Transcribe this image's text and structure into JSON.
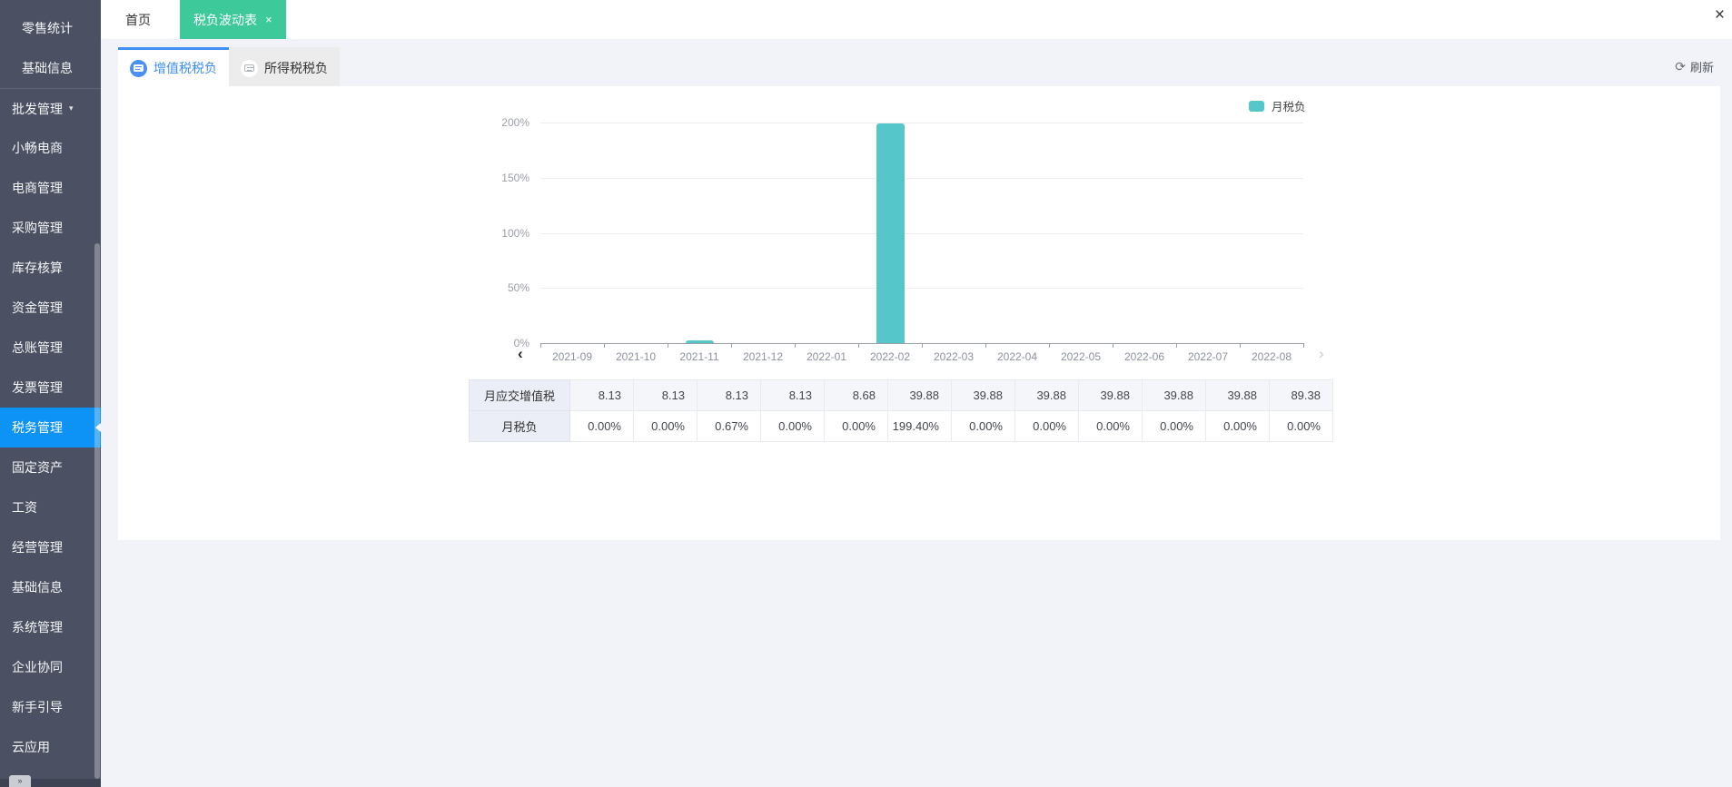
{
  "window": {
    "close_label": "×"
  },
  "icons": {
    "refresh": "⟳",
    "tab_close": "×",
    "caret_down": "▾",
    "collapse": "»"
  },
  "topbar": {
    "tabs": [
      {
        "label": "首页",
        "active": false,
        "closable": false
      },
      {
        "label": "税负波动表",
        "active": true,
        "closable": true
      }
    ]
  },
  "sidebar": {
    "items": [
      {
        "label": "零售统计",
        "indent": true
      },
      {
        "label": "基础信息",
        "indent": true
      },
      {
        "label": "批发管理",
        "caret": true,
        "divider_before": true
      },
      {
        "label": "小畅电商"
      },
      {
        "label": "电商管理"
      },
      {
        "label": "采购管理"
      },
      {
        "label": "库存核算"
      },
      {
        "label": "资金管理"
      },
      {
        "label": "总账管理"
      },
      {
        "label": "发票管理"
      },
      {
        "label": "税务管理",
        "active": true
      },
      {
        "label": "固定资产"
      },
      {
        "label": "工资"
      },
      {
        "label": "经营管理"
      },
      {
        "label": "基础信息"
      },
      {
        "label": "系统管理"
      },
      {
        "label": "企业协同"
      },
      {
        "label": "新手引导"
      },
      {
        "label": "云应用"
      }
    ]
  },
  "content": {
    "tabs": [
      {
        "label": "增值税税负",
        "active": true
      },
      {
        "label": "所得税税负",
        "active": false
      }
    ],
    "refresh_label": "刷新"
  },
  "chart_data": {
    "type": "bar",
    "title": "",
    "categories": [
      "2021-09",
      "2021-10",
      "2021-11",
      "2021-12",
      "2022-01",
      "2022-02",
      "2022-03",
      "2022-04",
      "2022-05",
      "2022-06",
      "2022-07",
      "2022-08"
    ],
    "series": [
      {
        "name": "月税负",
        "unit": "%",
        "color": "#55c7cb",
        "values": [
          0.0,
          0.0,
          0.67,
          0.0,
          0.0,
          199.4,
          0.0,
          0.0,
          0.0,
          0.0,
          0.0,
          0.0
        ]
      }
    ],
    "yticks": [
      {
        "label": "0%",
        "value": 0
      },
      {
        "label": "50%",
        "value": 50
      },
      {
        "label": "100%",
        "value": 100
      },
      {
        "label": "150%",
        "value": 150
      },
      {
        "label": "200%",
        "value": 200
      }
    ],
    "ylim": [
      0,
      200
    ],
    "grid": true,
    "legend": [
      {
        "label": "月税负",
        "color": "#55c7cb"
      }
    ],
    "legend_position": "top-right",
    "nav": {
      "prev": "‹",
      "next": "›"
    }
  },
  "table": {
    "rows": [
      {
        "header": "月应交增值税",
        "values": [
          "8.13",
          "8.13",
          "8.13",
          "8.13",
          "8.68",
          "39.88",
          "39.88",
          "39.88",
          "39.88",
          "39.88",
          "39.88",
          "89.38"
        ]
      },
      {
        "header": "月税负",
        "values": [
          "0.00%",
          "0.00%",
          "0.67%",
          "0.00%",
          "0.00%",
          "199.40%",
          "0.00%",
          "0.00%",
          "0.00%",
          "0.00%",
          "0.00%",
          "0.00%"
        ]
      }
    ]
  },
  "colors": {
    "sidebar_bg": "#4b5162",
    "sidebar_active": "#0d92f6",
    "top_tab_active": "#3ec99b",
    "content_tab_accent": "#3d8ef5",
    "bar_teal": "#55c7cb",
    "content_bg": "#f2f3f8"
  }
}
